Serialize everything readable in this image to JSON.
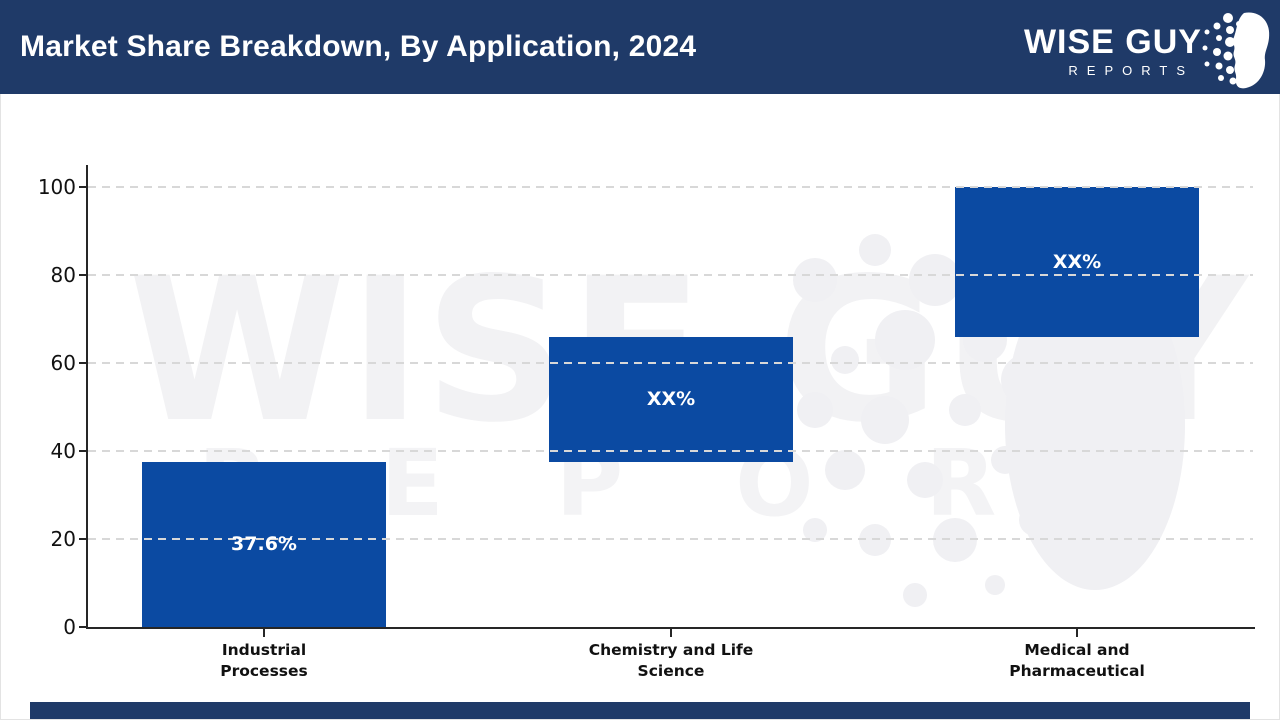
{
  "header": {
    "title": "Market Share Breakdown, By Application, 2024",
    "bg_color": "#1F3A68",
    "logo": {
      "name": "WISE GUY",
      "sub": "REPORTS"
    }
  },
  "watermark": {
    "line1": "WISE GUY",
    "line2": "R E P O R T S"
  },
  "chart_data": {
    "type": "bar",
    "subtype": "floating-waterfall",
    "title": "Market Share Breakdown, By Application, 2024",
    "categories": [
      "Industrial Processes",
      "Chemistry and Life Science",
      "Medical and Pharmaceutical"
    ],
    "xlabels": [
      "Industrial\nProcesses",
      "Chemistry and Life\nScience",
      "Medical and\nPharmaceutical"
    ],
    "segments": [
      {
        "category": "Industrial Processes",
        "start": 0,
        "end": 37.6,
        "label": "37.6%"
      },
      {
        "category": "Chemistry and Life Science",
        "start": 37.6,
        "end": 66,
        "label": "XX%"
      },
      {
        "category": "Medical and Pharmaceutical",
        "start": 66,
        "end": 100,
        "label": "XX%"
      }
    ],
    "ylim": [
      0,
      100
    ],
    "yticks": [
      0,
      20,
      40,
      60,
      80,
      100
    ],
    "grid": "horizontal-dashed",
    "gridline_color": "#d8d8d8",
    "legend": "none",
    "bar_color": "#0B4AA2",
    "bar_label_color": "#FFFFFF",
    "axis_color": "#262626"
  },
  "footer": {
    "bg_color": "#1F3A68"
  }
}
